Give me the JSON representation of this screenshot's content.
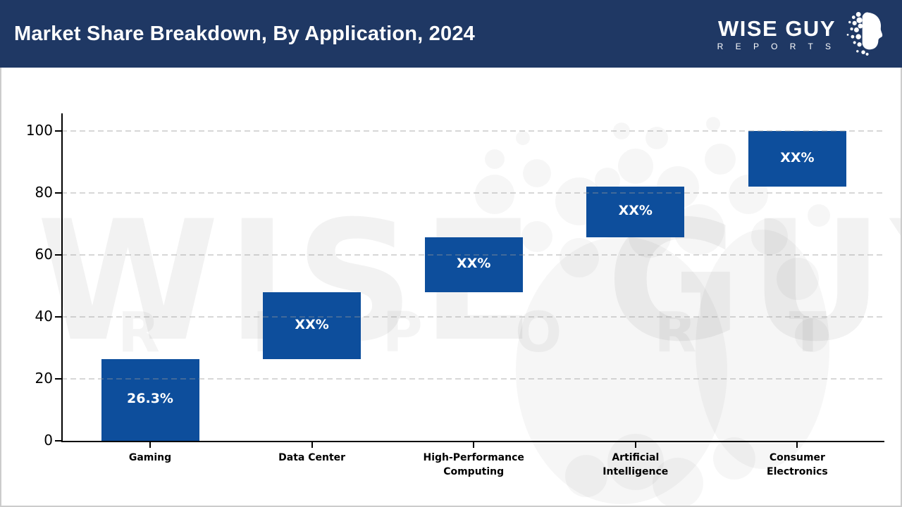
{
  "header": {
    "title": "Market Share Breakdown, By Application, 2024",
    "logo_line1": "WISE GUY",
    "logo_line2": "R E P O R T S"
  },
  "watermark": {
    "line1": "WISE GUY",
    "line2": "R E P O R T S"
  },
  "chart_data": {
    "type": "bar",
    "subtype": "waterfall",
    "title": "Market Share Breakdown, By Application, 2024",
    "categories": [
      "Gaming",
      "Data Center",
      "High-Performance Computing",
      "Artificial Intelligence",
      "Consumer Electronics"
    ],
    "category_label_lines": [
      [
        "Gaming"
      ],
      [
        "Data Center"
      ],
      [
        "High-Performance",
        "Computing"
      ],
      [
        "Artificial",
        "Intelligence"
      ],
      [
        "Consumer",
        "Electronics"
      ]
    ],
    "segments": [
      {
        "category": "Gaming",
        "start": 0,
        "end": 26.3,
        "label": "26.3%"
      },
      {
        "category": "Data Center",
        "start": 26.3,
        "end": 48,
        "label": "XX%"
      },
      {
        "category": "High-Performance Computing",
        "start": 48,
        "end": 65.7,
        "label": "XX%"
      },
      {
        "category": "Artificial Intelligence",
        "start": 65.7,
        "end": 82,
        "label": "XX%"
      },
      {
        "category": "Consumer Electronics",
        "start": 82,
        "end": 100,
        "label": "XX%"
      }
    ],
    "ylim": [
      0,
      100
    ],
    "yticks": [
      0,
      20,
      40,
      60,
      80,
      100
    ],
    "grid": "horizontal-dashed",
    "legend": null,
    "bar_color": "#0D4E9C",
    "bar_label_color": "#FFFFFF"
  },
  "colors": {
    "header_bg": "#1F3864",
    "header_text": "#FFFFFF",
    "body_bg": "#FFFFFF",
    "border": "#CCCCCC",
    "axis": "#000000"
  }
}
